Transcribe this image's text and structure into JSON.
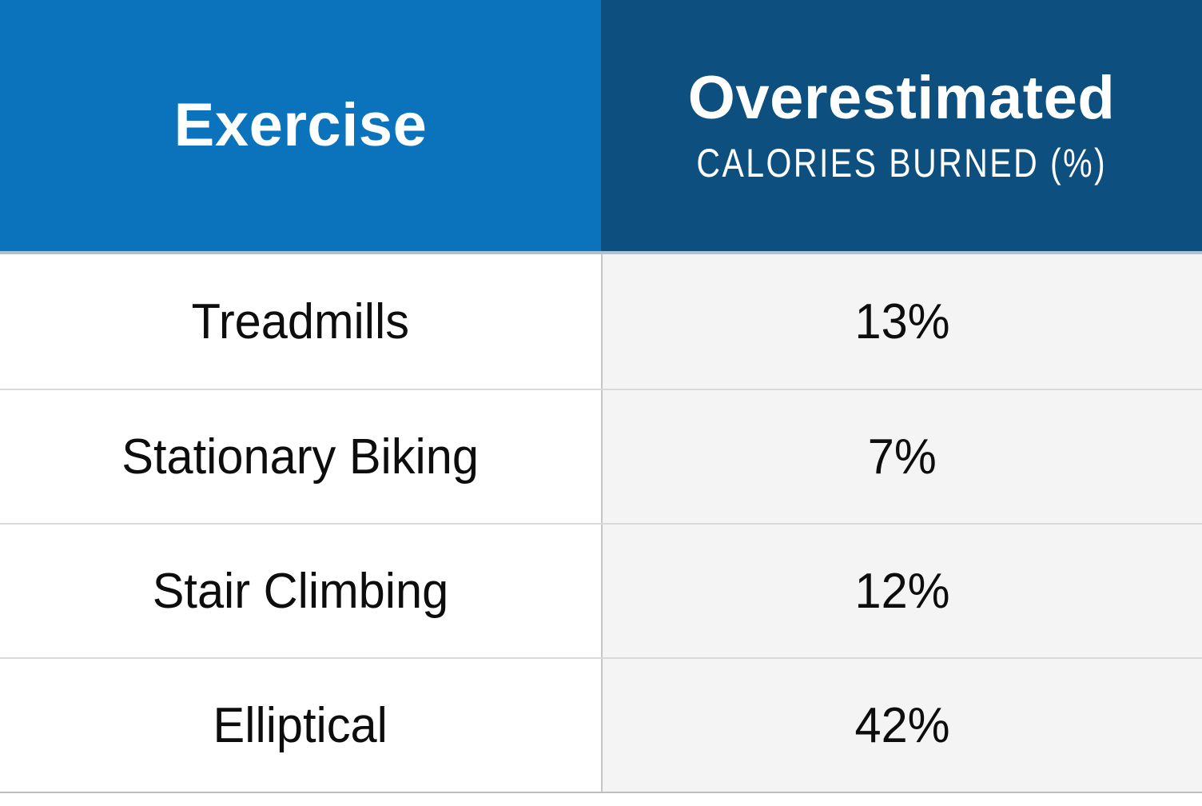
{
  "table": {
    "header": {
      "exercise_label": "Exercise",
      "value_title": "Overestimated",
      "value_subtitle": "CALORIES BURNED (%)"
    },
    "rows": [
      {
        "exercise": "Treadmills",
        "value": "13%"
      },
      {
        "exercise": "Stationary Biking",
        "value": "7%"
      },
      {
        "exercise": "Stair Climbing",
        "value": "12%"
      },
      {
        "exercise": "Elliptical",
        "value": "42%"
      }
    ]
  },
  "colors": {
    "exercise_header_bg": "#0b73bc",
    "value_header_bg": "#0d4f7f",
    "header_text": "#ffffff",
    "exercise_cell_bg": "#ffffff",
    "value_cell_bg": "#f4f4f4",
    "row_divider": "#d9d9d9",
    "column_divider": "#c6c6c6",
    "header_bottom_border": "#a9c2d6",
    "table_bottom_border": "#bdbdbd",
    "body_text": "#0d0d0d"
  },
  "chart_data": {
    "type": "table",
    "title": "Overestimated Calories Burned by Exercise Machine",
    "columns": [
      "Exercise",
      "Overestimated Calories Burned (%)"
    ],
    "categories": [
      "Treadmills",
      "Stationary Biking",
      "Stair Climbing",
      "Elliptical"
    ],
    "values": [
      13,
      7,
      12,
      42
    ],
    "unit": "%"
  }
}
